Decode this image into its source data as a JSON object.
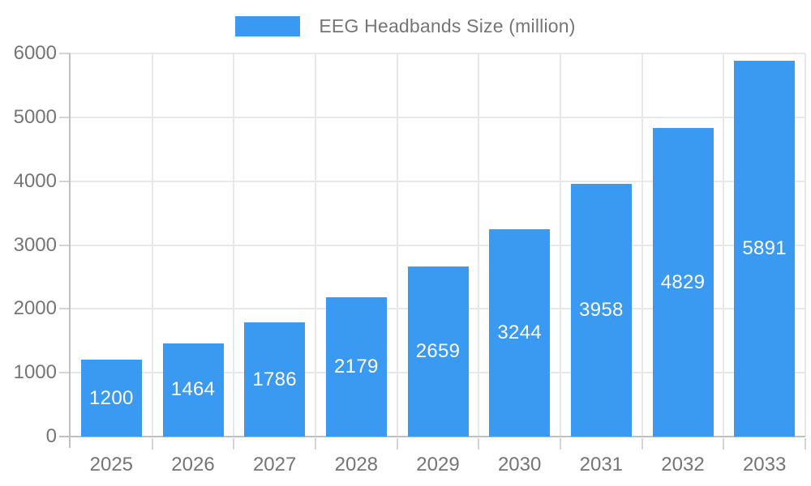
{
  "chart_data": {
    "type": "bar",
    "legend": "EEG Headbands Size (million)",
    "categories": [
      "2025",
      "2026",
      "2027",
      "2028",
      "2029",
      "2030",
      "2031",
      "2032",
      "2033"
    ],
    "values": [
      1200,
      1464,
      1786,
      2179,
      2659,
      3244,
      3958,
      4829,
      5891
    ],
    "yticks": [
      0,
      1000,
      2000,
      3000,
      4000,
      5000,
      6000
    ],
    "ylim": [
      0,
      6000
    ],
    "xlabel": "",
    "ylabel": "",
    "grid": true,
    "legend_position": "top"
  },
  "colors": {
    "bar": "#3a99f0",
    "bar_label": "#ffffff",
    "axis_text": "#757575",
    "grid": "#e8e8e8",
    "axis_line": "#c0c0c0",
    "tick": "#d4d4d4",
    "background": "#ffffff"
  }
}
